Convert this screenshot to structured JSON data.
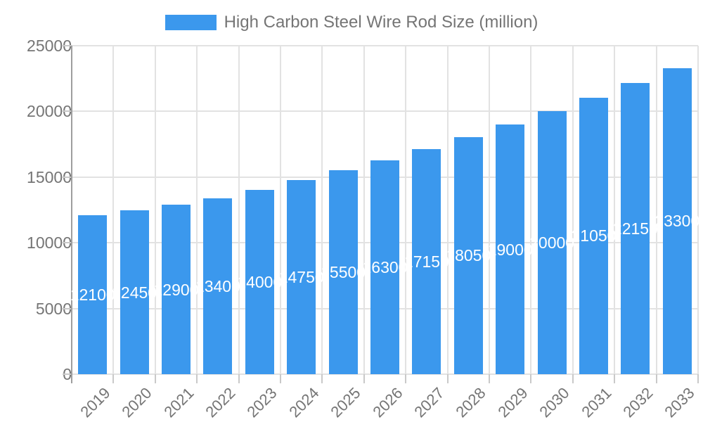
{
  "legend": {
    "label": "High Carbon Steel Wire Rod Size (million)"
  },
  "chart_data": {
    "type": "bar",
    "title": "High Carbon Steel Wire Rod Size (million)",
    "categories": [
      "2019",
      "2020",
      "2021",
      "2022",
      "2023",
      "2024",
      "2025",
      "2026",
      "2027",
      "2028",
      "2029",
      "2030",
      "2031",
      "2032",
      "2033"
    ],
    "values": [
      12100,
      12450,
      12900,
      13400,
      14000,
      14750,
      15500,
      16300,
      17150,
      18050,
      19000,
      20000,
      21050,
      22150,
      23300
    ],
    "bar_value_labels": [
      "12100",
      "12450",
      "12900",
      "13400",
      "14000",
      "14750",
      "15500",
      "16300",
      "17150",
      "18050",
      "19000",
      "20000",
      "21050",
      "22150",
      "23300"
    ],
    "xlabel": "",
    "ylabel": "",
    "ylim": [
      0,
      25000
    ],
    "yticks": [
      0,
      5000,
      10000,
      15000,
      20000,
      25000
    ],
    "grid": true,
    "legend_position": "top-center",
    "colors": {
      "bar": "#3b98ed",
      "value_label": "#ffffff",
      "axis_text": "#757575",
      "gridline": "#e2e2e2",
      "axis_line": "#9e9e9e",
      "tick": "#c9c9c9"
    }
  }
}
